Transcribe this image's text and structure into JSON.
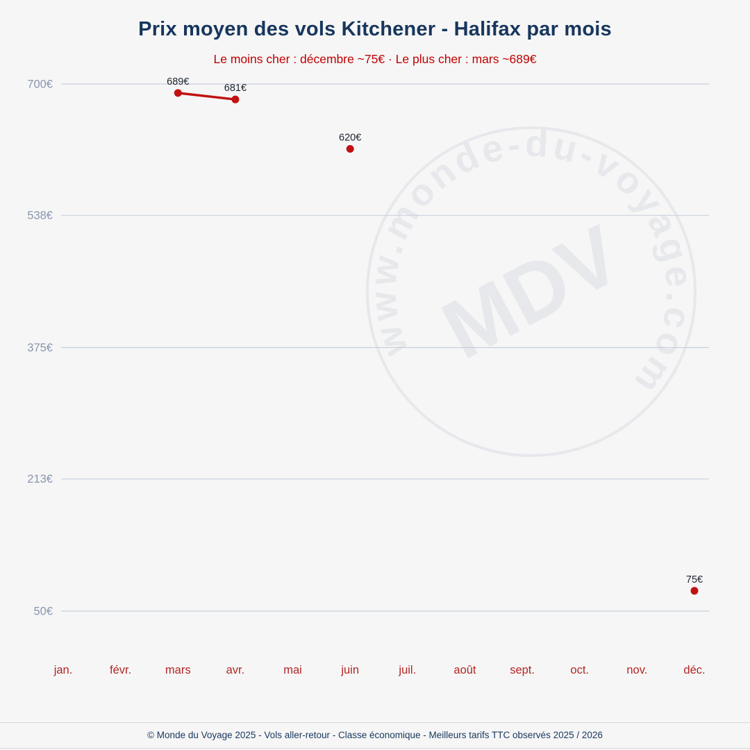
{
  "page": {
    "title": "Prix moyen des vols Kitchener - Halifax par mois",
    "subtitle": "Le moins cher : décembre ~75€ · Le plus cher : mars ~689€"
  },
  "watermark": {
    "circle_text": "www.monde-du-voyage.com",
    "center_text": "MDV"
  },
  "footer": {
    "text": "© Monde du Voyage 2025 - Vols aller-retour - Classe économique - Meilleurs tarifs TTC observés 2025 / 2026"
  },
  "chart_data": {
    "type": "scatter",
    "title": "Prix moyen des vols Kitchener - Halifax par mois",
    "categories": [
      "jan.",
      "févr.",
      "mars",
      "avr.",
      "mai",
      "juin",
      "juil.",
      "août",
      "sept.",
      "oct.",
      "nov.",
      "déc."
    ],
    "values": [
      null,
      null,
      689,
      681,
      null,
      620,
      null,
      null,
      null,
      null,
      null,
      75
    ],
    "point_labels": [
      "",
      "",
      "689€",
      "681€",
      "",
      "620€",
      "",
      "",
      "",
      "",
      "",
      "75€"
    ],
    "connected_pairs_note": "adjacent non-null months are linked: mars-avr.",
    "y_ticks": [
      700,
      538,
      375,
      213,
      50
    ],
    "y_tick_labels": [
      "700€",
      "538€",
      "375€",
      "213€",
      "50€"
    ],
    "ylim": [
      50,
      700
    ],
    "xlabel": "",
    "ylabel": "",
    "grid": "horizontal",
    "legend": "none",
    "cheapest": {
      "month": "décembre",
      "price": 75
    },
    "most_expensive": {
      "month": "mars",
      "price": 689
    },
    "currency": "EUR",
    "colors": {
      "background": "#f6f6f6",
      "title": "#17365d",
      "subtitle": "#c00000",
      "gridline": "#c8d0dc",
      "tick_label": "#8897ad",
      "month_label": "#b32524",
      "point": "#c11212",
      "point_label": "#1b2430",
      "watermark": "#e7e8ec",
      "footer_text": "#17365d",
      "footer_line": "#d9d9d9"
    }
  }
}
